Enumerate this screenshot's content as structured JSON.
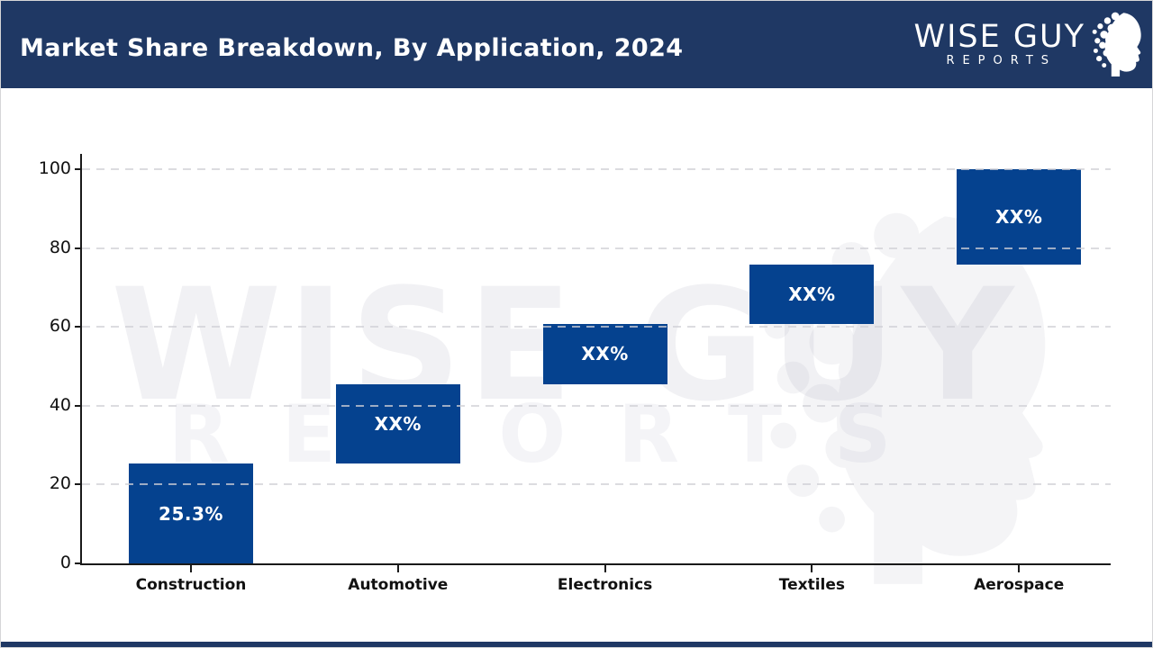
{
  "header": {
    "title": "Market Share Breakdown, By Application, 2024",
    "bg_color": "#1f3864",
    "logo": {
      "line1": "WISE GUY",
      "line2": "REPORTS"
    }
  },
  "watermark": {
    "line1": "WISE GUY",
    "line2": "REPORTS"
  },
  "chart_data": {
    "type": "bar",
    "subtype": "waterfall",
    "title": "Market Share Breakdown, By Application, 2024",
    "categories": [
      "Construction",
      "Automotive",
      "Electronics",
      "Textiles",
      "Aerospace"
    ],
    "bars": [
      {
        "category": "Construction",
        "label": "25.3%",
        "start": 0,
        "end": 25.3
      },
      {
        "category": "Automotive",
        "label": "XX%",
        "start": 25.3,
        "end": 45.4
      },
      {
        "category": "Electronics",
        "label": "XX%",
        "start": 45.4,
        "end": 60.8
      },
      {
        "category": "Textiles",
        "label": "XX%",
        "start": 60.8,
        "end": 75.9
      },
      {
        "category": "Aerospace",
        "label": "XX%",
        "start": 75.9,
        "end": 100
      }
    ],
    "y_ticks": [
      0,
      20,
      40,
      60,
      80,
      100
    ],
    "ylim": [
      0,
      104
    ],
    "xlabel": "",
    "ylabel": "",
    "bar_color": "#05428f",
    "bar_label_color": "#ffffff",
    "grid": "dashed-horizontal",
    "legend": "none"
  }
}
